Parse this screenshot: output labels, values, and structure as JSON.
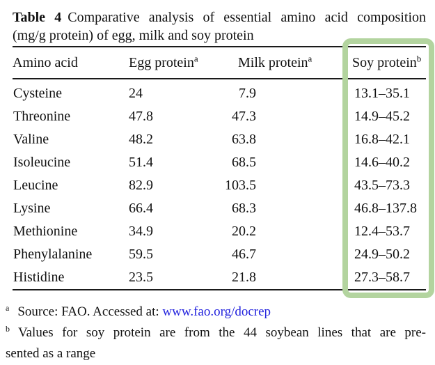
{
  "title": {
    "label": "Table 4",
    "rest": "Comparative analysis of essential amino acid composition",
    "line2": "(mg/g protein) of egg, milk and soy protein"
  },
  "table": {
    "headers": {
      "amino_acid": "Amino acid",
      "egg": "Egg protein",
      "egg_sup": "a",
      "milk": "Milk protein",
      "milk_sup": "a",
      "soy": "Soy protein",
      "soy_sup": "b"
    },
    "rows": [
      {
        "name": "Cysteine",
        "egg": "24",
        "milk": "7.9",
        "soy": "13.1–35.1"
      },
      {
        "name": "Threonine",
        "egg": "47.8",
        "milk": "47.3",
        "soy": "14.9–45.2"
      },
      {
        "name": "Valine",
        "egg": "48.2",
        "milk": "63.8",
        "soy": "16.8–42.1"
      },
      {
        "name": "Isoleucine",
        "egg": "51.4",
        "milk": "68.5",
        "soy": "14.6–40.2"
      },
      {
        "name": "Leucine",
        "egg": "82.9",
        "milk": "103.5",
        "soy": "43.5–73.3"
      },
      {
        "name": "Lysine",
        "egg": "66.4",
        "milk": "68.3",
        "soy": "46.8–137.8"
      },
      {
        "name": "Methionine",
        "egg": "34.9",
        "milk": "20.2",
        "soy": "12.4–53.7"
      },
      {
        "name": "Phenylalanine",
        "egg": "59.5",
        "milk": "46.7",
        "soy": "24.9–50.2"
      },
      {
        "name": "Histidine",
        "egg": "23.5",
        "milk": "21.8",
        "soy": "27.3–58.7"
      }
    ]
  },
  "footnotes": {
    "a_marker": "a",
    "a_text": "Source: FAO. Accessed at:",
    "a_link": "www.fao.org/docrep",
    "b_marker": "b",
    "b_line1": "Values for soy protein are from the 44 soybean lines that are pre-",
    "b_line2": "sented as a range"
  },
  "highlight": {
    "target": "soy-protein-column",
    "color": "#b3d49f"
  },
  "colors": {
    "text": "#111111",
    "rule": "#1a1a1a",
    "link": "#2222dd"
  }
}
